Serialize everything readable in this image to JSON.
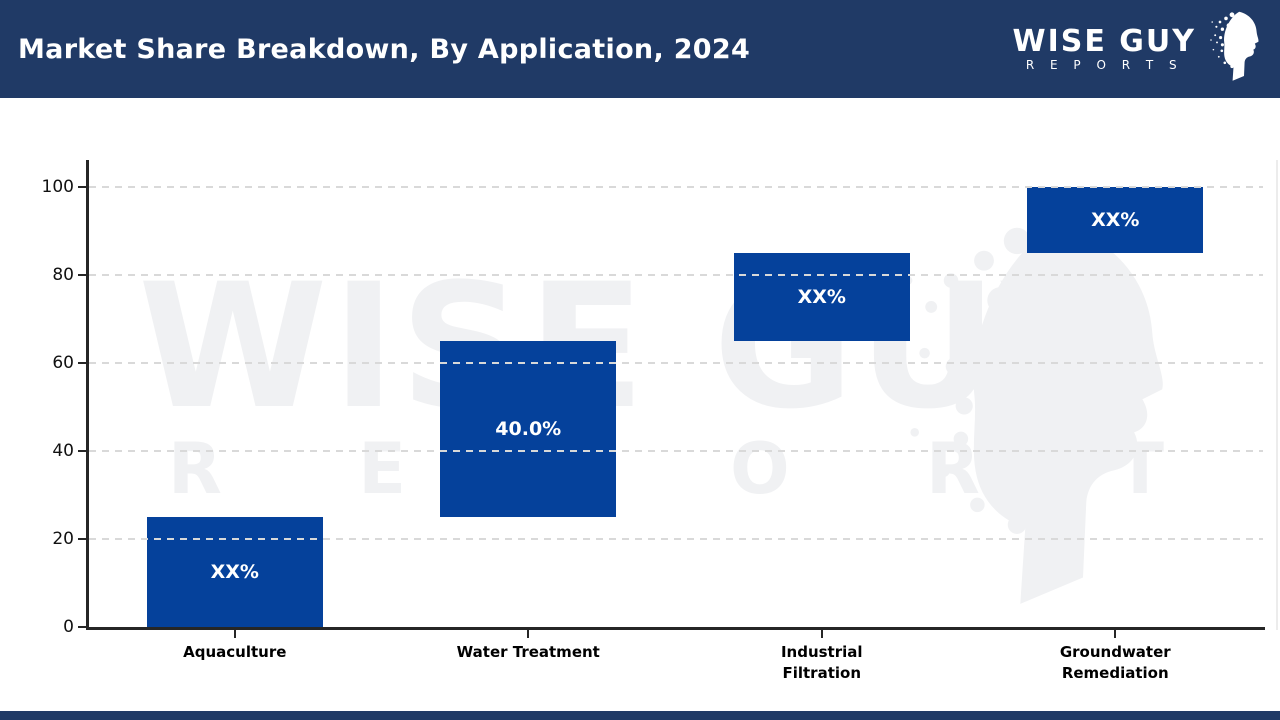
{
  "header": {
    "title": "Market Share Breakdown, By Application, 2024",
    "logo": {
      "name": "WISE GUY",
      "subtitle": "R E P O R T S",
      "head_icon": "dotted-head-profile"
    }
  },
  "watermark": {
    "line1": "WISE GUY",
    "line2": "R E P O R T S",
    "head_icon": "dotted-head-profile"
  },
  "colors": {
    "header_bg": "#203a66",
    "bar": "#05419b",
    "bar_label": "#ffffff",
    "grid": "#d9d9d9",
    "axis": "#262626",
    "watermark": "#f0f1f3",
    "title_text": "#ffffff",
    "tick_text": "#111111"
  },
  "chart_data": {
    "type": "bar",
    "variant": "floating-waterfall",
    "title": "Market Share Breakdown, By Application, 2024",
    "categories": [
      "Aquaculture",
      "Water Treatment",
      "Industrial\nFiltration",
      "Groundwater\nRemediation"
    ],
    "segments": [
      {
        "category": "Aquaculture",
        "start": 0,
        "end": 25,
        "label": "XX%"
      },
      {
        "category": "Water Treatment",
        "start": 25,
        "end": 65,
        "label": "40.0%"
      },
      {
        "category": "Industrial Filtration",
        "start": 65,
        "end": 85,
        "label": "XX%"
      },
      {
        "category": "Groundwater Remediation",
        "start": 85,
        "end": 100,
        "label": "XX%"
      }
    ],
    "ylim": [
      0,
      100
    ],
    "yticks": [
      0,
      20,
      40,
      60,
      80,
      100
    ],
    "xlabel": "",
    "ylabel": "",
    "grid": "horizontal-dashed-over-bars",
    "legend": "none"
  }
}
